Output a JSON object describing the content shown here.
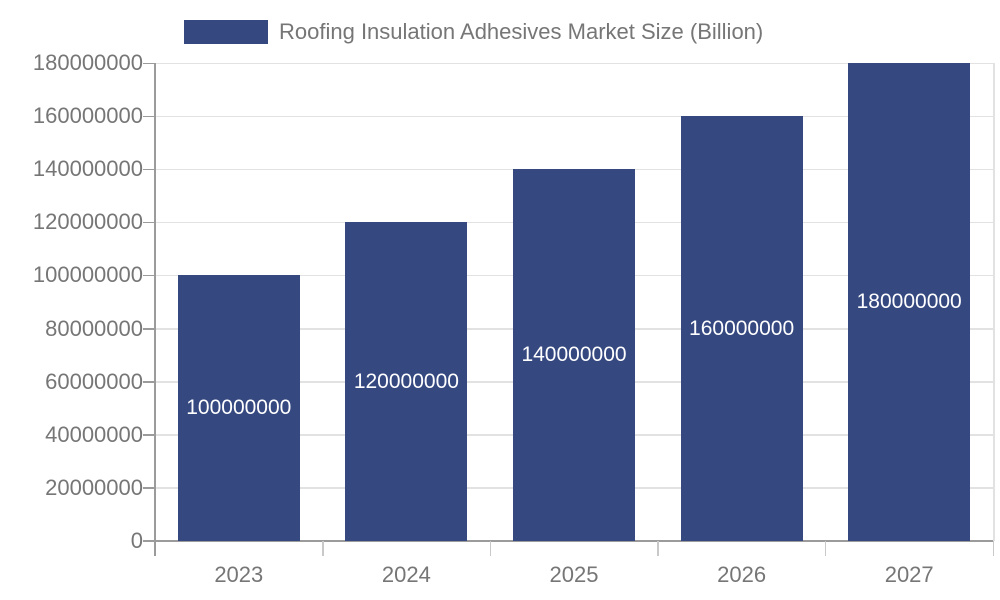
{
  "chart_data": {
    "type": "bar",
    "title": "Roofing Insulation Adhesives Market Size (Billion)",
    "categories": [
      "2023",
      "2024",
      "2025",
      "2026",
      "2027"
    ],
    "values": [
      100000000,
      120000000,
      140000000,
      160000000,
      180000000
    ],
    "bar_labels": [
      "100000000",
      "120000000",
      "140000000",
      "160000000",
      "180000000"
    ],
    "yticks": [
      "0",
      "20000000",
      "40000000",
      "60000000",
      "80000000",
      "100000000",
      "120000000",
      "140000000",
      "160000000",
      "180000000"
    ],
    "ytick_step": 20000000,
    "ylim": [
      0,
      180000000
    ],
    "grid": true,
    "legend_position": "top",
    "xlabel": "",
    "ylabel": "",
    "colors": {
      "bar": "#354880",
      "grid": "#e2e2e2",
      "axis": "#9b9b9b",
      "minor_tick": "#c9c9c9",
      "text": "#767676",
      "bar_label": "#ffffff",
      "background": "#ffffff"
    }
  }
}
